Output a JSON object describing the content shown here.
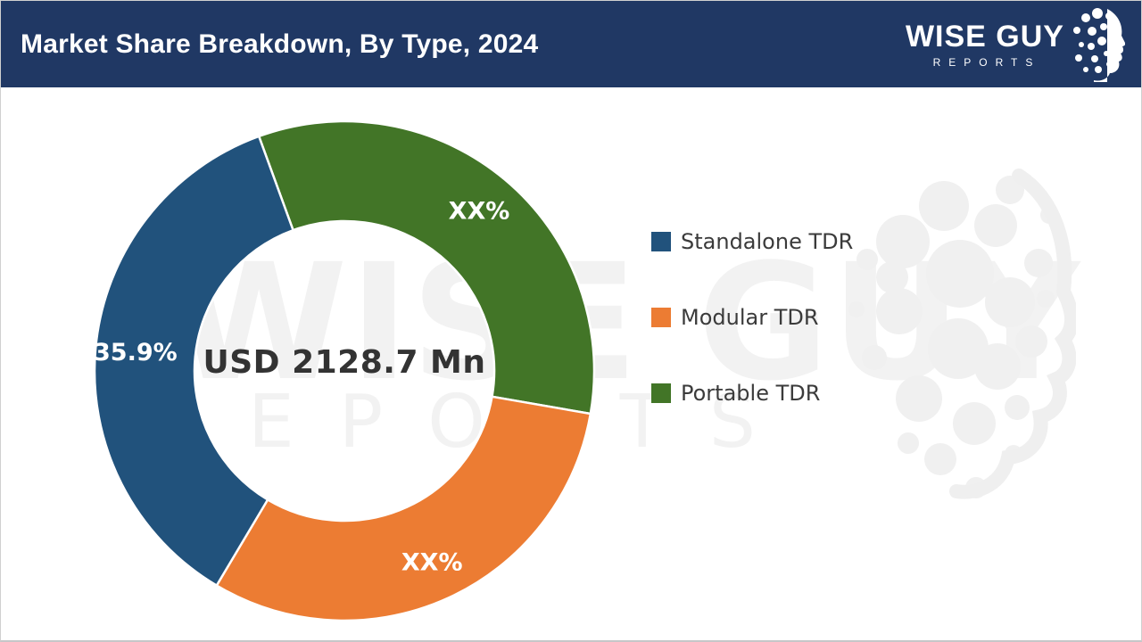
{
  "header": {
    "title": "Market Share Breakdown, By Type, 2024",
    "bg_color": "#203864",
    "logo": {
      "line1": "WISE GUY",
      "line2": "REPORTS"
    }
  },
  "watermark": {
    "line1": "WISE GUY",
    "line2": "REPORTS"
  },
  "chart_data": {
    "type": "donut",
    "title": "Market Share Breakdown, By Type, 2024",
    "center_label": "USD 2128.7 Mn",
    "start_angle_deg": -20,
    "donut_hole_ratio": 0.6,
    "legend_position": "right",
    "segments": [
      {
        "label": "Portable TDR",
        "value": 33.3,
        "display_label": "XX%",
        "color": "#427527"
      },
      {
        "label": "Modular TDR",
        "value": 30.8,
        "display_label": "XX%",
        "color": "#EC7C33"
      },
      {
        "label": "Standalone TDR",
        "value": 35.9,
        "display_label": "35.9%",
        "color": "#21527C"
      }
    ],
    "legend": [
      {
        "label": "Standalone TDR",
        "color": "#21527C"
      },
      {
        "label": "Modular TDR",
        "color": "#EC7C33"
      },
      {
        "label": "Portable TDR",
        "color": "#427527"
      }
    ]
  }
}
